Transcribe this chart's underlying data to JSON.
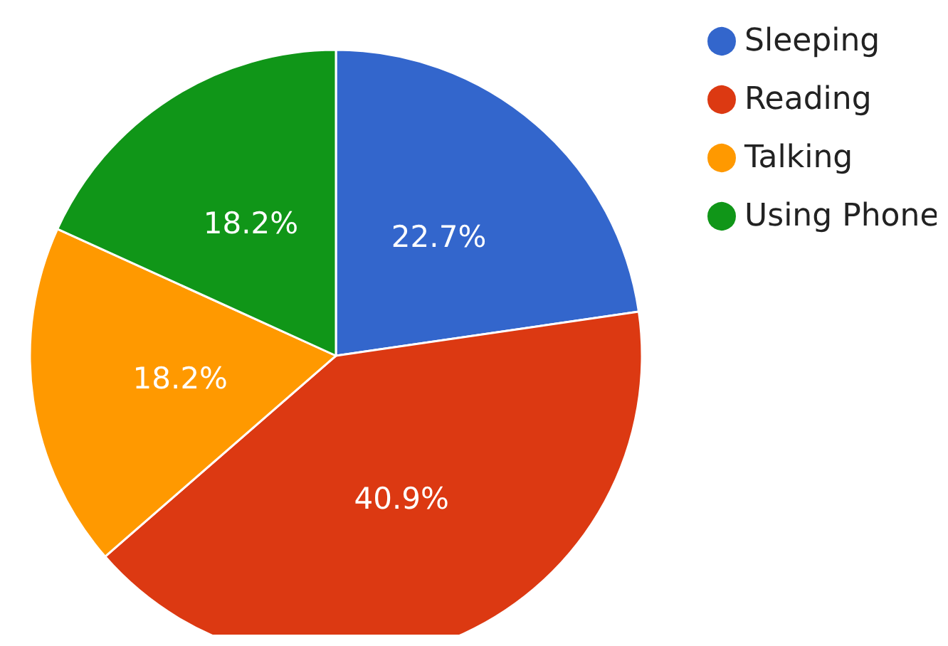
{
  "chart_data": {
    "type": "pie",
    "categories": [
      "Sleeping",
      "Reading",
      "Talking",
      "Using Phone"
    ],
    "values": [
      22.7,
      40.9,
      18.2,
      18.2
    ],
    "colors": [
      "#3366cc",
      "#dc3912",
      "#ff9900",
      "#109618"
    ],
    "value_labels": [
      "22.7%",
      "40.9%",
      "18.2%",
      "18.2%"
    ],
    "legend": "top right"
  }
}
